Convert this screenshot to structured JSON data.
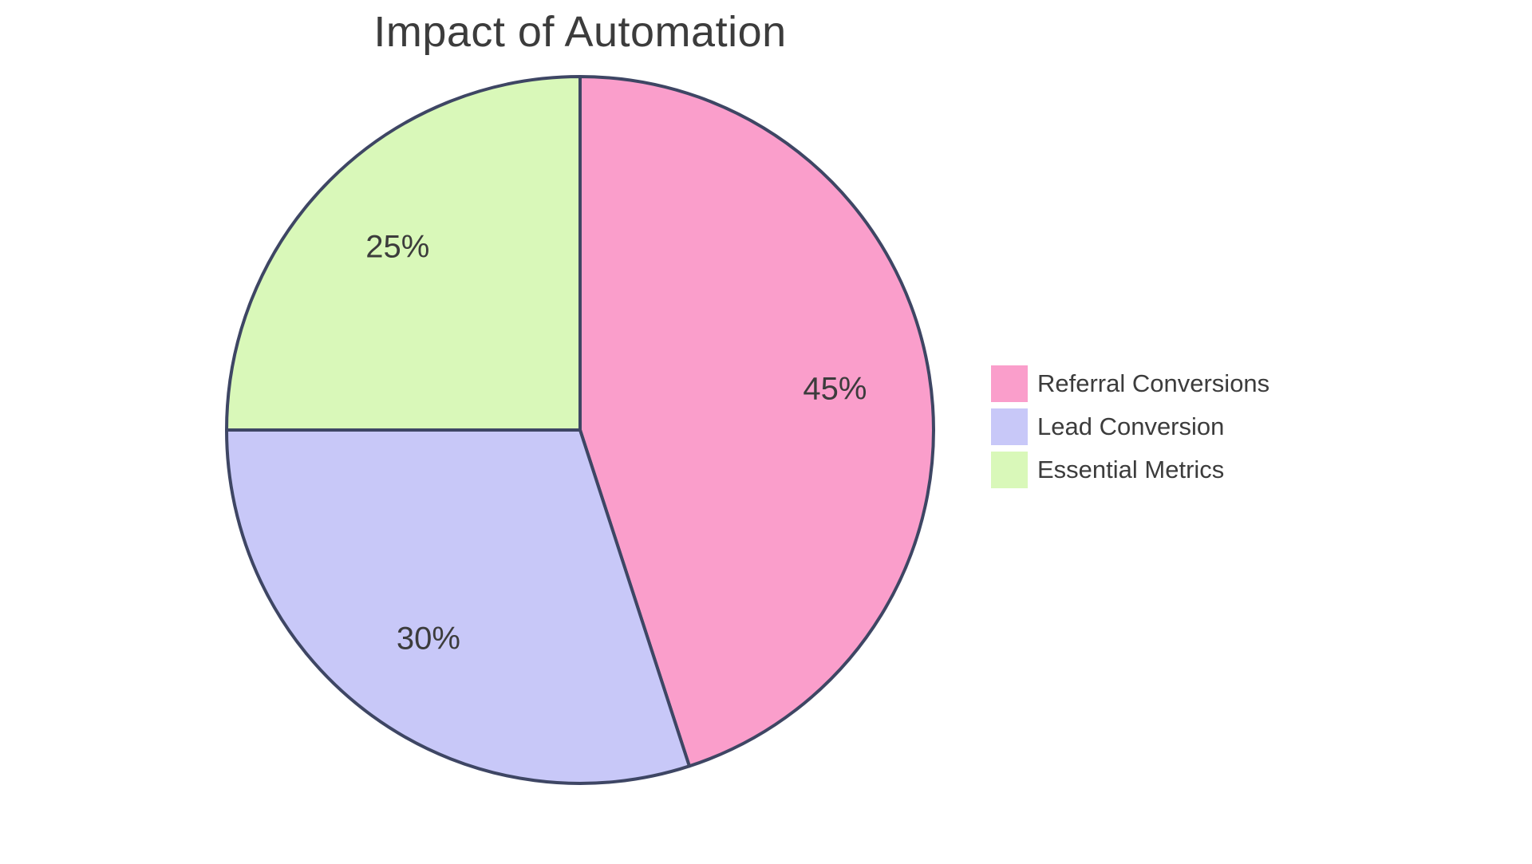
{
  "page": {
    "background_color": "#FFFFFF",
    "text_color": "#3C3C3C"
  },
  "chart_data": {
    "type": "pie",
    "title": "Impact of Automation",
    "slices": [
      {
        "label": "Referral Conversions",
        "value": 45,
        "pct_label": "45%",
        "color": "#FA9ECB"
      },
      {
        "label": "Lead Conversion",
        "value": 30,
        "pct_label": "30%",
        "color": "#C8C8F8"
      },
      {
        "label": "Essential Metrics",
        "value": 25,
        "pct_label": "25%",
        "color": "#D9F8B9"
      }
    ],
    "start_angle_deg": 0,
    "direction": "clockwise",
    "stroke_color": "#3E4664",
    "stroke_width": 4,
    "label_color": "#3C3C3C",
    "legend_position": "right",
    "legend_entries": [
      "Referral Conversions",
      "Lead Conversion",
      "Essential Metrics"
    ]
  }
}
